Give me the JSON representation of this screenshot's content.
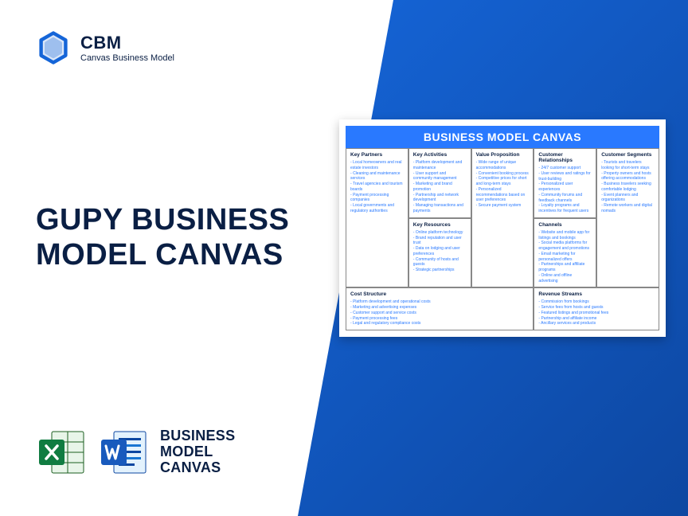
{
  "logo": {
    "title": "CBM",
    "subtitle": "Canvas Business Model"
  },
  "main_title": "GUPY BUSINESS\nMODEL CANVAS",
  "bottom_label": "BUSINESS\nMODEL\nCANVAS",
  "canvas": {
    "title": "BUSINESS MODEL CANVAS",
    "colors": {
      "header_bg": "#2979ff",
      "header_fg": "#ffffff",
      "cell_header_fg": "#0a1f44",
      "cell_body_fg": "#2979ff",
      "border": "#888888"
    },
    "sections": {
      "key_partners": {
        "header": "Key Partners",
        "items": [
          "Local homeowners and real estate investors",
          "Cleaning and maintenance services",
          "Travel agencies and tourism boards",
          "Payment processing companies",
          "Local governments and regulatory authorities"
        ]
      },
      "key_activities": {
        "header": "Key Activities",
        "items": [
          "Platform development and maintenance",
          "User support and community management",
          "Marketing and brand promotion",
          "Partnership and network development",
          "Managing transactions and payments"
        ]
      },
      "key_resources": {
        "header": "Key Resources",
        "items": [
          "Online platform technology",
          "Brand reputation and user trust",
          "Data on lodging and user preferences",
          "Community of hosts and guests",
          "Strategic partnerships"
        ]
      },
      "value_proposition": {
        "header": "Value Proposition",
        "items": [
          "Wide range of unique accommodations",
          "Convenient booking process",
          "Competitive prices for short and long-term stays",
          "Personalized recommendations based on user preferences",
          "Secure payment system"
        ]
      },
      "customer_relationships": {
        "header": "Customer Relationships",
        "items": [
          "24/7 customer support",
          "User reviews and ratings for trust-building",
          "Personalized user experiences",
          "Community forums and feedback channels",
          "Loyalty programs and incentives for frequent users"
        ]
      },
      "channels": {
        "header": "Channels",
        "items": [
          "Website and mobile app for listings and bookings",
          "Social media platforms for engagement and promotions",
          "Email marketing for personalized offers",
          "Partnerships and affiliate programs",
          "Online and offline advertising"
        ]
      },
      "customer_segments": {
        "header": "Customer Segments",
        "items": [
          "Tourists and travelers looking for short-term stays",
          "Property owners and hosts offering accommodations",
          "Business travelers seeking comfortable lodging",
          "Event planners and organizations",
          "Remote workers and digital nomads"
        ]
      },
      "cost_structure": {
        "header": "Cost Structure",
        "items": [
          "Platform development and operational costs",
          "Marketing and advertising expenses",
          "Customer support and service costs",
          "Payment processing fees",
          "Legal and regulatory compliance costs"
        ]
      },
      "revenue_streams": {
        "header": "Revenue Streams",
        "items": [
          "Commission from bookings",
          "Service fees from hosts and guests",
          "Featured listings and promotional fees",
          "Partnership and affiliate income",
          "Ancillary services and products"
        ]
      }
    }
  }
}
